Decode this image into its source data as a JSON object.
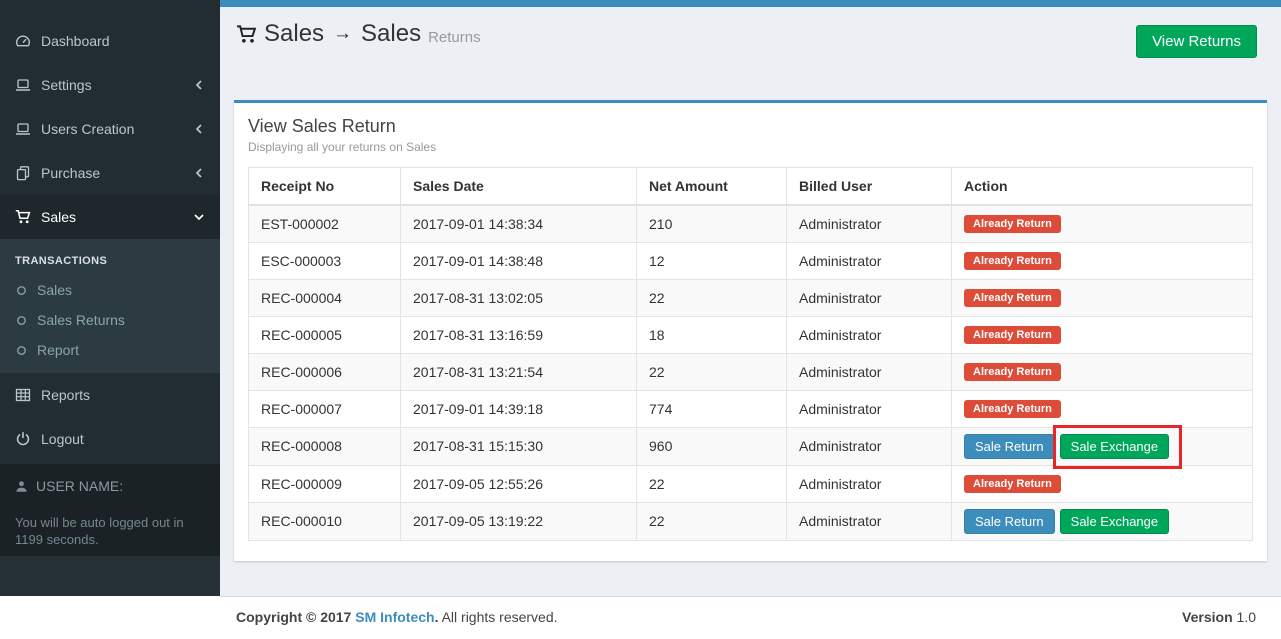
{
  "sidebar": {
    "items": [
      {
        "label": "Dashboard",
        "icon": "gauge-icon",
        "chevron": "none",
        "active": false
      },
      {
        "label": "Settings",
        "icon": "laptop-icon",
        "chevron": "left",
        "active": false
      },
      {
        "label": "Users Creation",
        "icon": "laptop-icon",
        "chevron": "left",
        "active": false
      },
      {
        "label": "Purchase",
        "icon": "copy-icon",
        "chevron": "left",
        "active": false
      },
      {
        "label": "Sales",
        "icon": "cart-icon",
        "chevron": "down",
        "active": true
      }
    ],
    "submenu_header": "TRANSACTIONS",
    "submenu": [
      "Sales",
      "Sales Returns",
      "Report"
    ],
    "bottom_items": [
      {
        "label": "Reports",
        "icon": "table-icon"
      },
      {
        "label": "Logout",
        "icon": "power-icon"
      }
    ],
    "user_label": "USER NAME:",
    "auto_logout_line1": "You will be auto logged out in",
    "auto_logout_line2": "1199 seconds."
  },
  "header": {
    "breadcrumb_root": "Sales",
    "breadcrumb_arrow": "→",
    "breadcrumb_current": "Sales",
    "breadcrumb_sub": "Returns",
    "view_returns_label": "View Returns"
  },
  "panel": {
    "title": "View Sales Return",
    "subtitle": "Displaying all your returns on Sales"
  },
  "table": {
    "headers": [
      "Receipt No",
      "Sales Date",
      "Net Amount",
      "Billed User",
      "Action"
    ],
    "rows": [
      {
        "receipt": "EST-000002",
        "date": "2017-09-01 14:38:34",
        "amount": "210",
        "user": "Administrator",
        "actions": [
          {
            "label": "Already Return",
            "type": "badge"
          }
        ]
      },
      {
        "receipt": "ESC-000003",
        "date": "2017-09-01 14:38:48",
        "amount": "12",
        "user": "Administrator",
        "actions": [
          {
            "label": "Already Return",
            "type": "badge"
          }
        ]
      },
      {
        "receipt": "REC-000004",
        "date": "2017-08-31 13:02:05",
        "amount": "22",
        "user": "Administrator",
        "actions": [
          {
            "label": "Already Return",
            "type": "badge"
          }
        ]
      },
      {
        "receipt": "REC-000005",
        "date": "2017-08-31 13:16:59",
        "amount": "18",
        "user": "Administrator",
        "actions": [
          {
            "label": "Already Return",
            "type": "badge"
          }
        ]
      },
      {
        "receipt": "REC-000006",
        "date": "2017-08-31 13:21:54",
        "amount": "22",
        "user": "Administrator",
        "actions": [
          {
            "label": "Already Return",
            "type": "badge"
          }
        ]
      },
      {
        "receipt": "REC-000007",
        "date": "2017-09-01 14:39:18",
        "amount": "774",
        "user": "Administrator",
        "actions": [
          {
            "label": "Already Return",
            "type": "badge"
          }
        ]
      },
      {
        "receipt": "REC-000008",
        "date": "2017-08-31 15:15:30",
        "amount": "960",
        "user": "Administrator",
        "actions": [
          {
            "label": "Sale Return",
            "type": "btn-blue"
          },
          {
            "label": "Sale Exchange",
            "type": "btn-green",
            "highlighted": true
          }
        ]
      },
      {
        "receipt": "REC-000009",
        "date": "2017-09-05 12:55:26",
        "amount": "22",
        "user": "Administrator",
        "actions": [
          {
            "label": "Already Return",
            "type": "badge"
          }
        ]
      },
      {
        "receipt": "REC-000010",
        "date": "2017-09-05 13:19:22",
        "amount": "22",
        "user": "Administrator",
        "actions": [
          {
            "label": "Sale Return",
            "type": "btn-blue"
          },
          {
            "label": "Sale Exchange",
            "type": "btn-green"
          }
        ]
      }
    ]
  },
  "footer": {
    "copyright_prefix": "Copyright © 2017 ",
    "company": "SM Infotech",
    "copyright_suffix": ".",
    "rights": " All rights reserved.",
    "version_label": "Version",
    "version_value": " 1.0"
  },
  "colors": {
    "accent_blue": "#3c8dbc",
    "green": "#00a65a",
    "badge_red": "#dd4b39",
    "highlight_red": "#e8262a",
    "sidebar_bg": "#222d32",
    "sidebar_active_bg": "#1e282c",
    "submenu_bg": "#2c3b41",
    "content_bg": "#ecf0f5"
  }
}
